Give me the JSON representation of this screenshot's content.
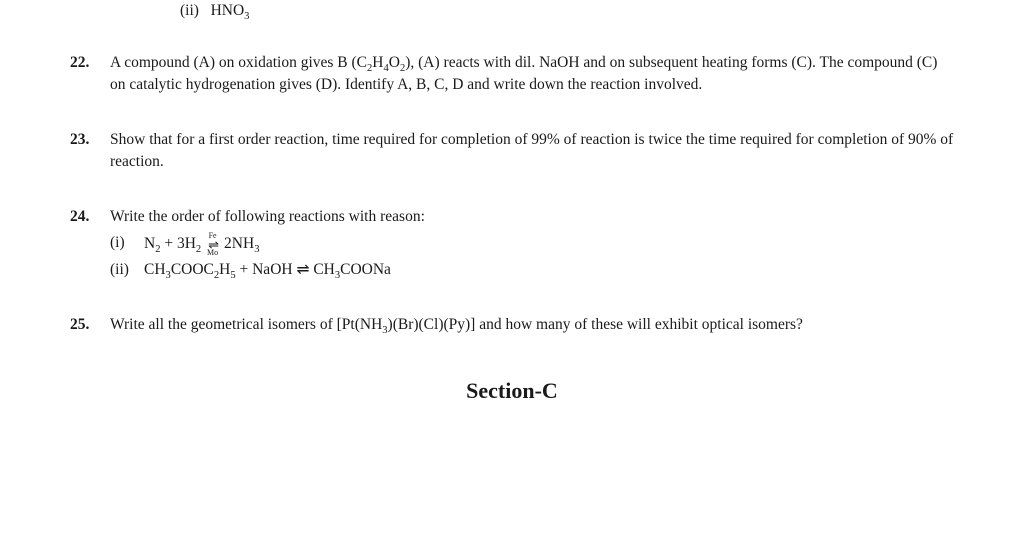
{
  "textColor": "#1a1a1a",
  "background": "#ffffff",
  "topFragment": {
    "label": "(ii)",
    "formula_html": "HNO<sub>3</sub>"
  },
  "questions": [
    {
      "num": "22.",
      "text": "A compound (A) on oxidation gives B (C₂H₄O₂), (A) reacts with dil. NaOH and on subsequent heating forms (C). The compound (C) on catalytic hydrogenation gives (D). Identify A, B, C, D and write down the reaction involved."
    },
    {
      "num": "23.",
      "text": "Show that for a first order reaction, time required for completion of 99% of reaction is twice the time required for completion of 90% of reaction."
    },
    {
      "num": "24.",
      "lead": "Write the order of following reactions with reason:",
      "sub": [
        {
          "n": "(i)",
          "lhs_html": "N<sub>2</sub> + 3H<sub>2</sub>",
          "top": "Fe",
          "bot": "Mo",
          "rhs_html": "2NH<sub>3</sub>"
        },
        {
          "n": "(ii)",
          "lhs_html": "CH<sub>3</sub>COOC<sub>2</sub>H<sub>5</sub> + NaOH",
          "arrow": "⇌",
          "rhs_html": "CH<sub>3</sub>COONa"
        }
      ]
    },
    {
      "num": "25.",
      "text": "Write all the geometrical isomers of [Pt(NH₃)(Br)(Cl)(Py)] and how many of these will exhibit optical isomers?"
    }
  ],
  "sectionTitle": "Section-C"
}
